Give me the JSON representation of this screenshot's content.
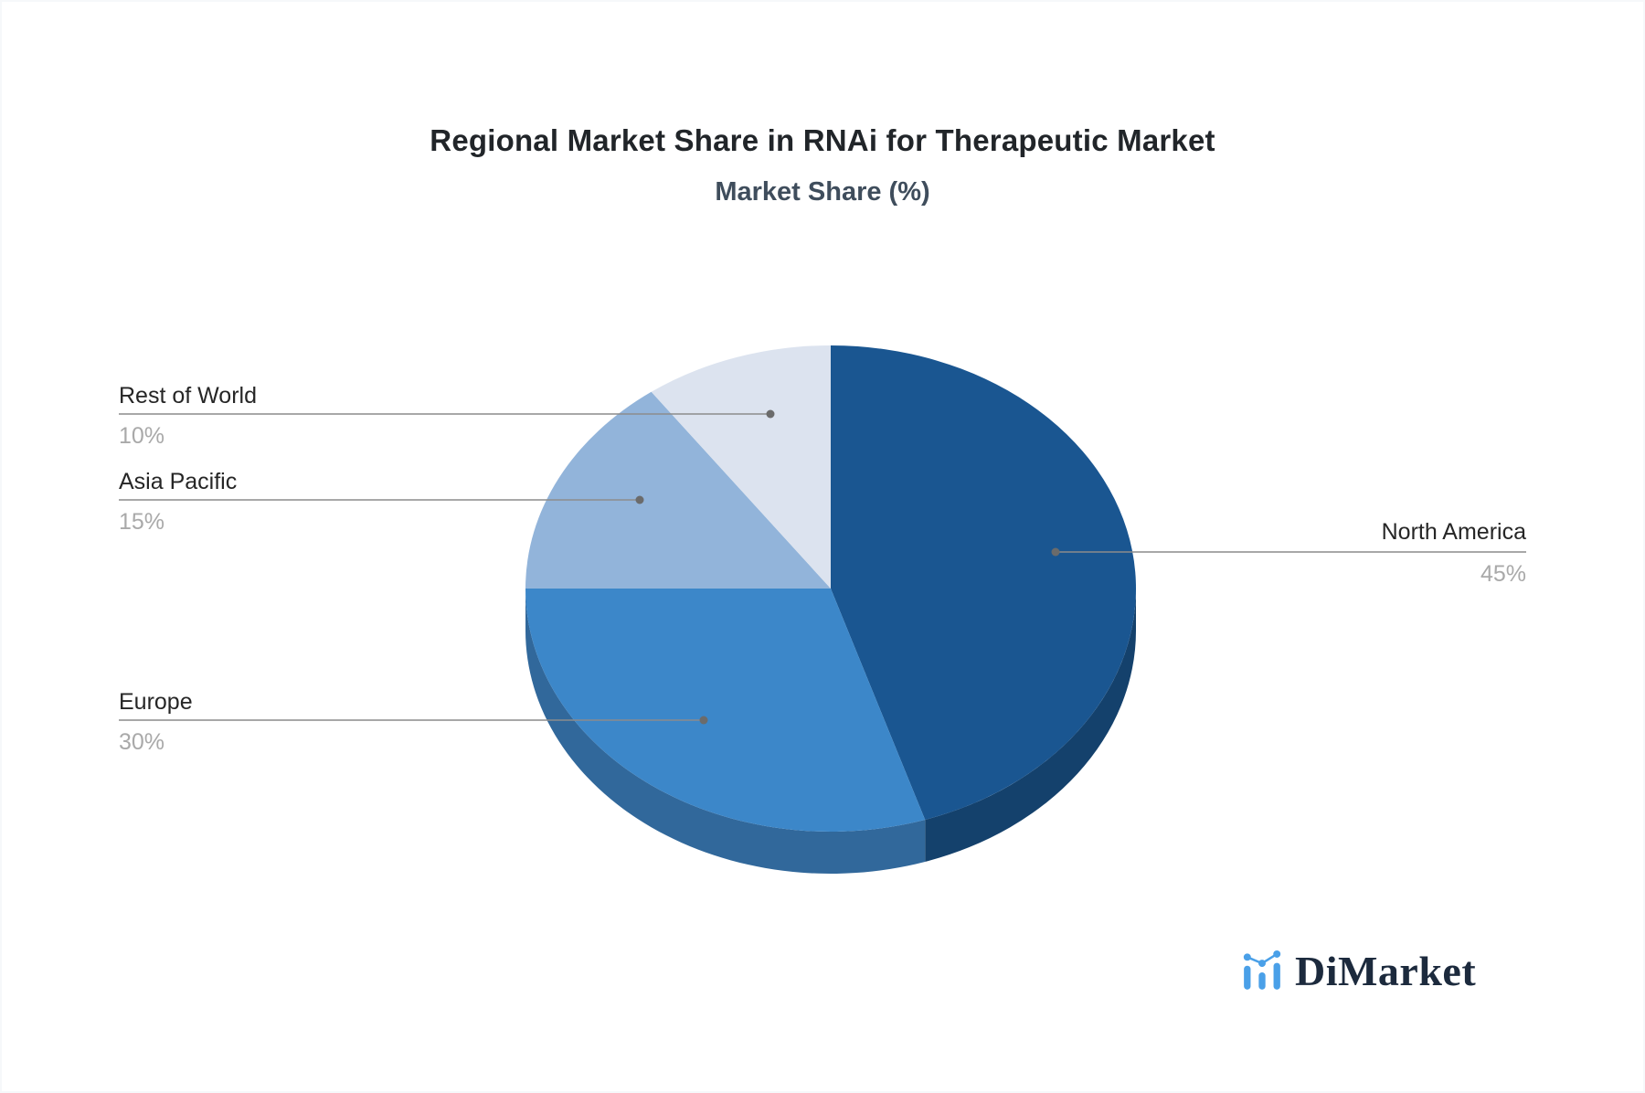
{
  "header": {
    "title": "Regional Market Share in RNAi for Therapeutic Market",
    "subtitle": "Market Share (%)"
  },
  "chart_data": {
    "type": "pie",
    "style": "3d",
    "title": "Regional Market Share in RNAi for Therapeutic Market",
    "subtitle": "Market Share (%)",
    "unit": "%",
    "legend_position": "callout-labels",
    "categories": [
      "North America",
      "Europe",
      "Asia Pacific",
      "Rest of World"
    ],
    "values": [
      45,
      30,
      15,
      10
    ],
    "slices": [
      {
        "label": "North America",
        "value": 45,
        "pct_label": "45%",
        "color": "#1A5691",
        "rim_color": "#14416C"
      },
      {
        "label": "Europe",
        "value": 30,
        "pct_label": "30%",
        "color": "#3C87C9",
        "rim_color": "#31689B"
      },
      {
        "label": "Asia Pacific",
        "value": 15,
        "pct_label": "15%",
        "color": "#92B4DA",
        "rim_color": "#7495BC"
      },
      {
        "label": "Rest of World",
        "value": 10,
        "pct_label": "10%",
        "color": "#DCE3EF",
        "rim_color": "#B8C2D4"
      }
    ]
  },
  "colors": {
    "leader_line": "#8c8c8c",
    "leader_dot": "#6b6b6b",
    "title_text": "#212529",
    "subtitle_text": "#3f4d5c",
    "label_text": "#262626",
    "pct_text": "#a9a9a9"
  },
  "logo": {
    "text": "DiMarket",
    "icon": "bar-line-chart-icon",
    "icon_color": "#4AA0E8",
    "text_color": "#1c2a3d"
  }
}
